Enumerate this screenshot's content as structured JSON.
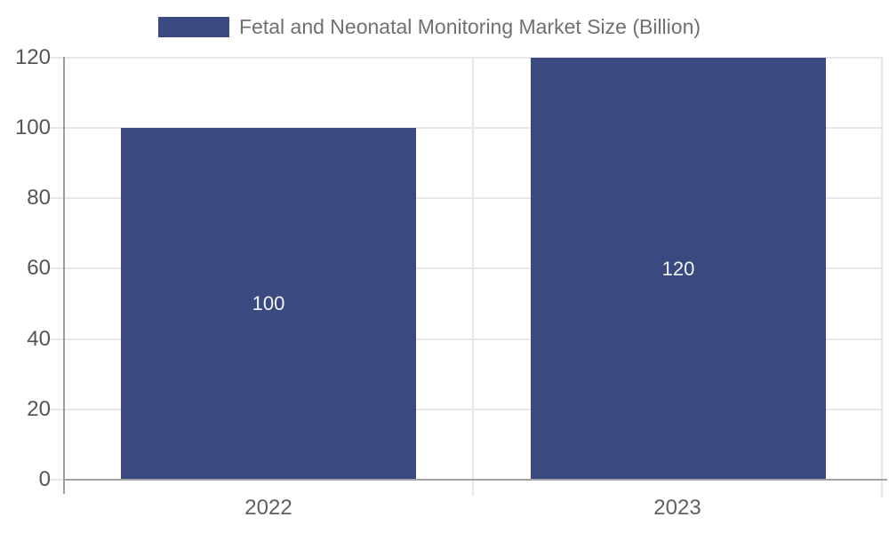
{
  "chart_data": {
    "type": "bar",
    "title": "Fetal and Neonatal Monitoring Market Size (Billion)",
    "legend_position": "top",
    "categories": [
      "2022",
      "2023"
    ],
    "series": [
      {
        "name": "Fetal and Neonatal Monitoring Market Size (Billion)",
        "values": [
          100,
          120
        ]
      }
    ],
    "values": [
      100,
      120
    ],
    "data_labels": [
      "100",
      "120"
    ],
    "xlabel": "",
    "ylabel": "",
    "ylim": [
      0,
      120
    ],
    "yticks": [
      0,
      20,
      40,
      60,
      80,
      100,
      120
    ],
    "ytick_labels": [
      "0",
      "20",
      "40",
      "60",
      "80",
      "100",
      "120"
    ],
    "grid": true,
    "bar_color": "#3A4A80",
    "value_label_color": "#F5F5F5"
  }
}
